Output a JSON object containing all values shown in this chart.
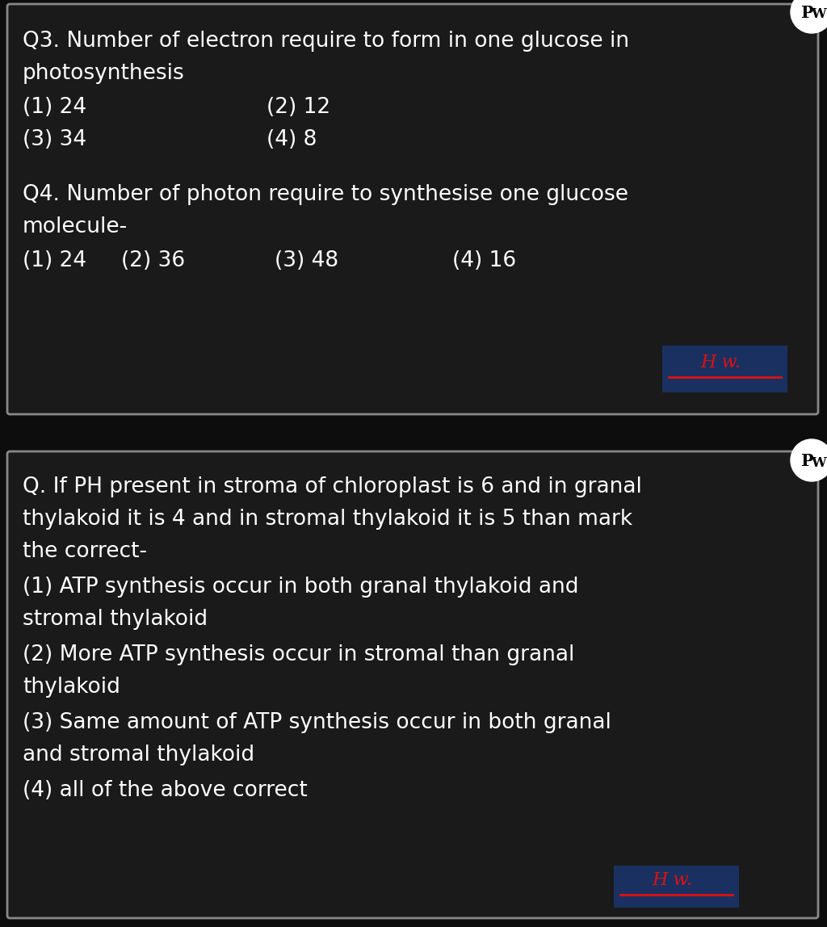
{
  "bg_color": "#0d0d0d",
  "card_bg": "#1a1a1a",
  "card_border": "#888888",
  "text_color": "#ffffff",
  "font_size_main": 19,
  "hw_box_color": "#1a3060",
  "hw_text_color": "#dd1111",
  "card1": {
    "q3_line1": "Q3. Number of electron require to form in one glucose in",
    "q3_line2": "photosynthesis",
    "q3_opt1": "(1) 24",
    "q3_opt2": "(2) 12",
    "q3_opt3": "(3) 34",
    "q3_opt4": "(4) 8",
    "q4_line1": "Q4. Number of photon require to synthesise one glucose",
    "q4_line2": "molecule-",
    "q4_opt1": "(1) 24",
    "q4_opt2": "(2) 36",
    "q4_opt3": "(3) 48",
    "q4_opt4": "(4) 16"
  },
  "card2": {
    "q_line1": "Q. If PH present in stroma of chloroplast is 6 and in granal",
    "q_line2": "thylakoid it is 4 and in stromal thylakoid it is 5 than mark",
    "q_line3": "the correct-",
    "opt1_line1": "(1) ATP synthesis occur in both granal thylakoid and",
    "opt1_line2": "stromal thylakoid",
    "opt2_line1": "(2) More ATP synthesis occur in stromal than granal",
    "opt2_line2": "thylakoid",
    "opt3_line1": "(3) Same amount of ATP synthesis occur in both granal",
    "opt3_line2": "and stromal thylakoid",
    "opt4": "(4) all of the above correct"
  }
}
